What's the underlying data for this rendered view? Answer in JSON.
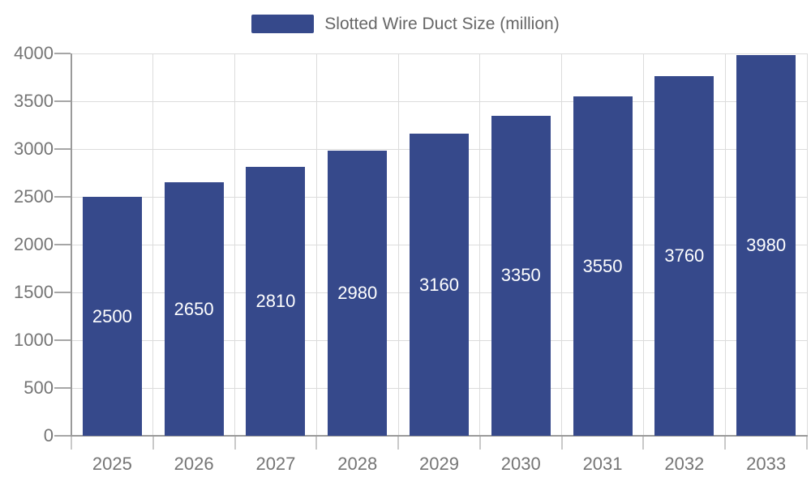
{
  "legend": {
    "label": "Slotted Wire Duct Size (million)"
  },
  "chart_data": {
    "type": "bar",
    "title": "Slotted Wire Duct Size (million)",
    "series_name": "Slotted Wire Duct Size (million)",
    "categories": [
      "2025",
      "2026",
      "2027",
      "2028",
      "2029",
      "2030",
      "2031",
      "2032",
      "2033"
    ],
    "values": [
      2500,
      2650,
      2810,
      2980,
      3160,
      3350,
      3550,
      3760,
      3980
    ],
    "data_labels": [
      "2500",
      "2650",
      "2810",
      "2980",
      "3160",
      "3350",
      "3550",
      "3760",
      "3980"
    ],
    "xlabel": "",
    "ylabel": "",
    "ylim": [
      0,
      4000
    ],
    "ytick_interval": 500,
    "ytick_labels": [
      "0",
      "500",
      "1000",
      "1500",
      "2000",
      "2500",
      "3000",
      "3500",
      "4000"
    ],
    "grid": true,
    "legend_position": "top",
    "bar_color": "#36498b",
    "bar_label_color": "#ffffff",
    "axis_text_color": "#757575",
    "legend_text_color": "#666666",
    "gridline_color": "#dcdcdc",
    "axis_line_color": "#9a9a9a"
  }
}
